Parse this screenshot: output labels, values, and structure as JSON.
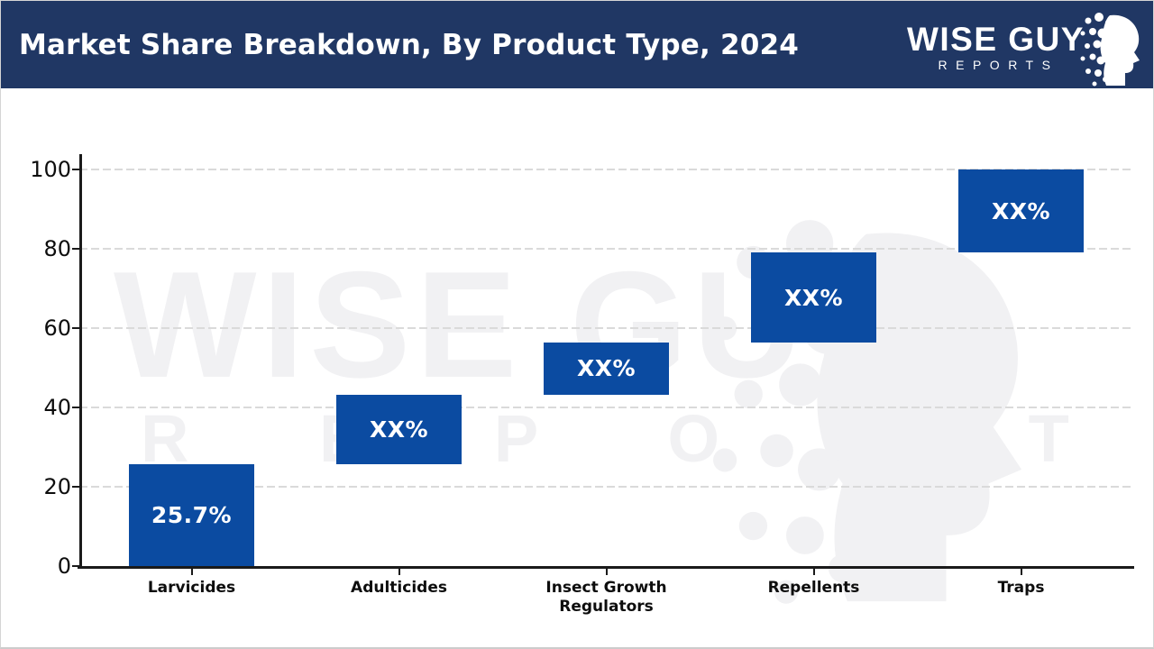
{
  "header": {
    "title": "Market Share Breakdown, By Product Type, 2024",
    "bg_color": "#203764",
    "logo": {
      "line1": "WISE GUY",
      "line2": "REPORTS"
    }
  },
  "watermark": {
    "line1": "WISE GU",
    "line2": "R E P O R T S"
  },
  "chart_data": {
    "type": "bar",
    "subtype": "waterfall-floating-bars",
    "title": "Market Share Breakdown, By Product Type, 2024",
    "categories": [
      "Larvicides",
      "Adulticides",
      "Insect Growth Regulators",
      "Repellents",
      "Traps"
    ],
    "segments": [
      {
        "start": 0,
        "end": 25.7,
        "label": "25.7%"
      },
      {
        "start": 25.7,
        "end": 43.2,
        "label": "XX%"
      },
      {
        "start": 43.2,
        "end": 56.4,
        "label": "XX%"
      },
      {
        "start": 56.4,
        "end": 79.0,
        "label": "XX%"
      },
      {
        "start": 79.0,
        "end": 100,
        "label": "XX%"
      }
    ],
    "bar_color": "#0b4ba1",
    "bar_label_color": "#ffffff",
    "yticks": [
      0,
      20,
      40,
      60,
      80,
      100
    ],
    "ylim": [
      0,
      105
    ],
    "xlabel": "",
    "ylabel": "",
    "grid": "horizontal-dashed",
    "legend": "none"
  }
}
